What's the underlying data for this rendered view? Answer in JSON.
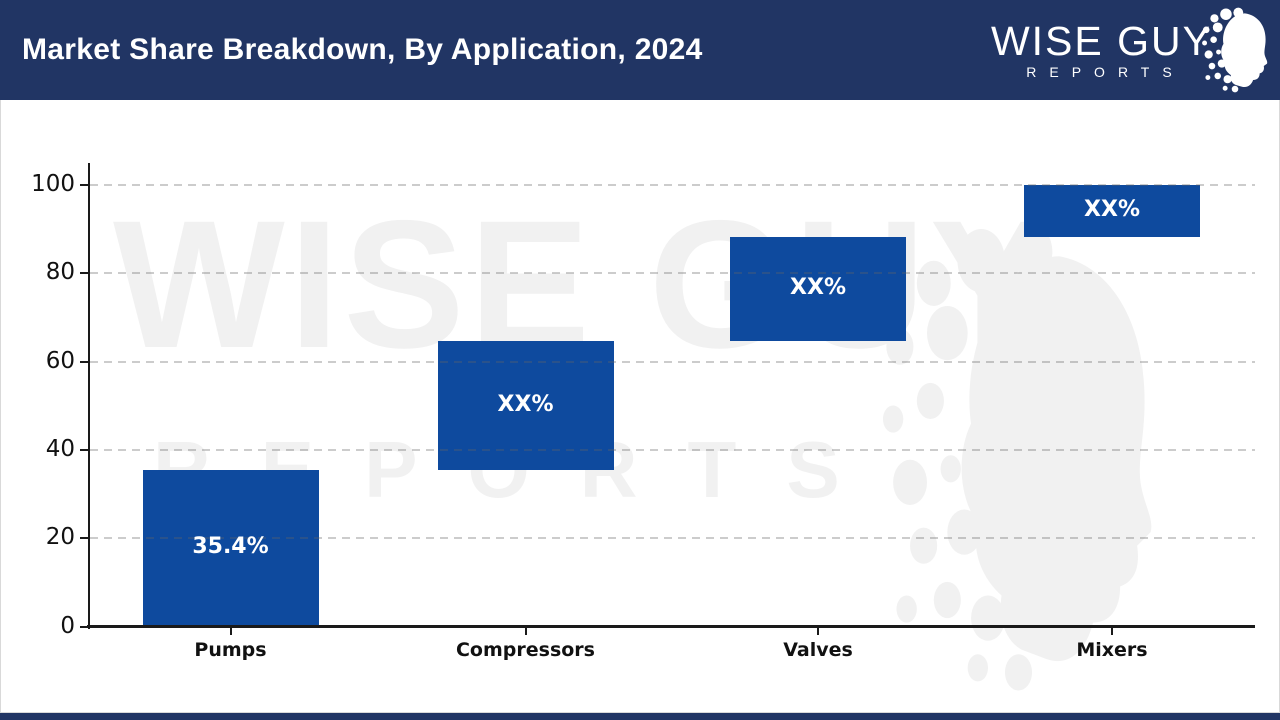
{
  "header": {
    "title": "Market Share Breakdown, By Application, 2024",
    "logo": {
      "name_line": "WISE GUY",
      "sub_line": "REPORTS"
    }
  },
  "watermark": {
    "name_line": "WISE GUY",
    "sub_line": "REPORTS"
  },
  "colors": {
    "header_background": "#213564",
    "bar_blue": "#0e4a9e",
    "watermark_gray": "#f1f1f1"
  },
  "chart_data": {
    "type": "bar",
    "subtype": "waterfall",
    "title": "Market Share Breakdown, By Application, 2024",
    "categories": [
      "Pumps",
      "Compressors",
      "Valves",
      "Mixers"
    ],
    "segments": [
      {
        "category": "Pumps",
        "start": 0,
        "end": 35.4,
        "label": "35.4%"
      },
      {
        "category": "Compressors",
        "start": 35.4,
        "end": 64.6,
        "label": "XX%"
      },
      {
        "category": "Valves",
        "start": 64.6,
        "end": 88.2,
        "label": "XX%"
      },
      {
        "category": "Mixers",
        "start": 88.2,
        "end": 100,
        "label": "XX%"
      }
    ],
    "xlabel": "",
    "ylabel": "",
    "ylim": [
      0,
      100
    ],
    "yticks": [
      0,
      20,
      40,
      60,
      80,
      100
    ],
    "grid": "horizontal-dashed",
    "legend": "none",
    "bar_color": "#0e4a9e",
    "bar_label_color": "#ffffff"
  }
}
